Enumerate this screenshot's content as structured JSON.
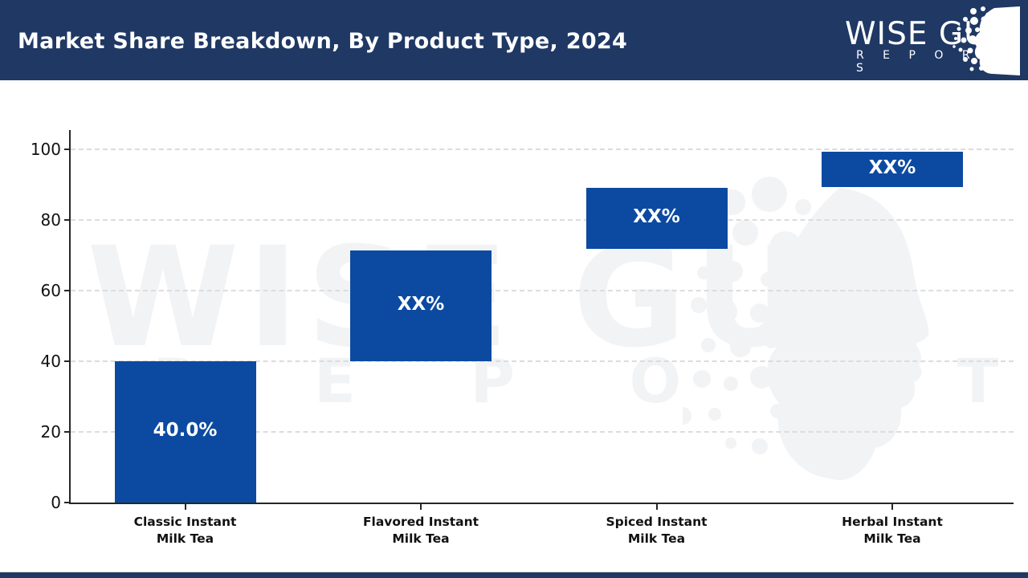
{
  "header": {
    "title": "Market Share Breakdown, By Product Type, 2024",
    "logo": {
      "brand": "WISE GUY",
      "sub": "R E P O R T S"
    }
  },
  "watermark": {
    "line1": "WISE GU",
    "line2": "REPORTS"
  },
  "chart_data": {
    "type": "bar",
    "subtype": "waterfall",
    "title": "Market Share Breakdown, By Product Type, 2024",
    "xlabel": "",
    "ylabel": "",
    "categories": [
      "Classic Instant\nMilk Tea",
      "Flavored Instant\nMilk Tea",
      "Spiced Instant\nMilk Tea",
      "Herbal Instant\nMilk Tea"
    ],
    "segments": [
      {
        "label": "40.0%",
        "start": 0,
        "end": 40
      },
      {
        "label": "XX%",
        "start": 40,
        "end": 71.4
      },
      {
        "label": "XX%",
        "start": 71.8,
        "end": 89.1
      },
      {
        "label": "XX%",
        "start": 89.3,
        "end": 99.3
      }
    ],
    "yticks": [
      0,
      20,
      40,
      60,
      80,
      100
    ],
    "ylim": [
      0,
      105
    ],
    "grid": "dashed-horizontal",
    "legend": "none"
  },
  "colors": {
    "navy": "#1f3864",
    "bar_blue": "#0c4aa2",
    "grid": "#dcdcdc",
    "axis": "#262626",
    "value_label": "#ffffff",
    "watermark": "#f2f3f5"
  }
}
